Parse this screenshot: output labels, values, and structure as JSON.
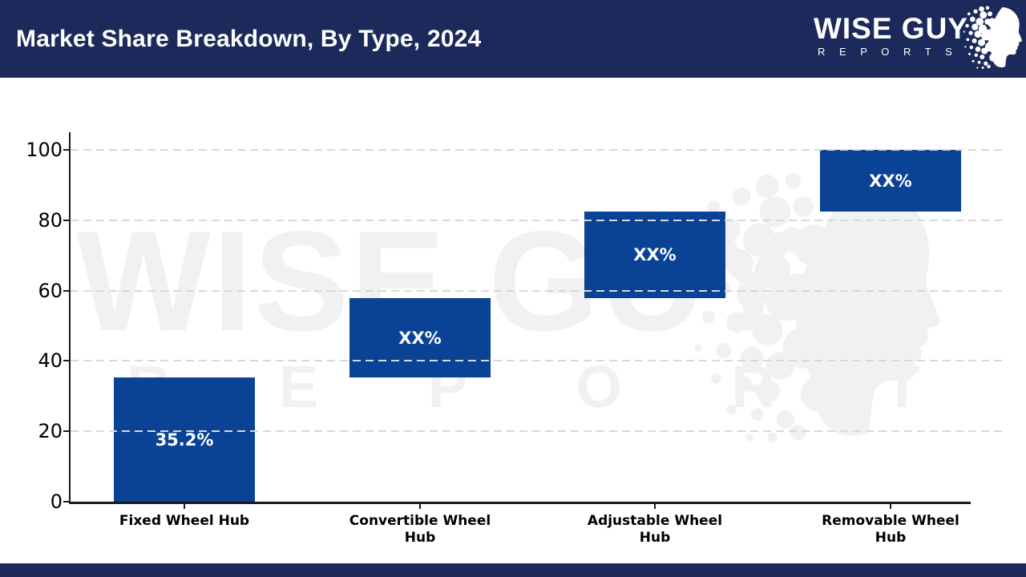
{
  "header": {
    "title": "Market Share Breakdown, By Type, 2024",
    "logo_line1": "WISE GUY",
    "logo_line2": "R E P O R T S"
  },
  "watermark": {
    "line1": "WISE GUY",
    "line2": "R E P O R T S"
  },
  "colors": {
    "header_bg": "#1b2a5a",
    "bar": "#0a4396",
    "grid": "#d8d8d8",
    "watermark": "#f1f1f4",
    "axis": "#1a1a1a",
    "on_bar_text": "#ffffff",
    "page_bg": "#ffffff"
  },
  "chart_data": {
    "type": "bar",
    "subtype": "waterfall",
    "title": "Market Share Breakdown, By Type, 2024",
    "categories": [
      "Fixed Wheel Hub",
      "Convertible Wheel Hub",
      "Adjustable Wheel Hub",
      "Removable Wheel Hub"
    ],
    "bars": [
      {
        "category": "Fixed Wheel Hub",
        "start": 0,
        "end": 35.2,
        "label": "35.2%"
      },
      {
        "category": "Convertible Wheel Hub",
        "start": 35.2,
        "end": 57.9,
        "label": "XX%"
      },
      {
        "category": "Adjustable Wheel Hub",
        "start": 57.9,
        "end": 82.4,
        "label": "XX%"
      },
      {
        "category": "Removable Wheel Hub",
        "start": 82.4,
        "end": 100,
        "label": "XX%"
      }
    ],
    "yticks": [
      0,
      20,
      40,
      60,
      80,
      100
    ],
    "ylim": [
      0,
      105
    ],
    "xlabel": "",
    "ylabel": "",
    "legend": "none",
    "grid": "horizontal-dashed"
  }
}
